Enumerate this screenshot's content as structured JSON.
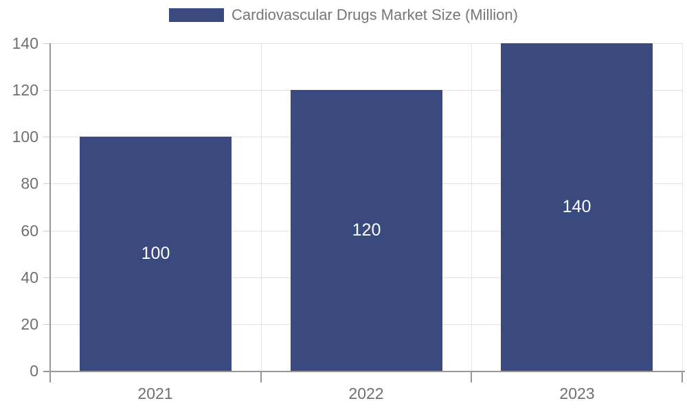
{
  "legend": {
    "label": "Cardiovascular Drugs Market Size (Million)"
  },
  "chart_data": {
    "type": "bar",
    "title": "Cardiovascular Drugs Market Size (Million)",
    "series_name": "Cardiovascular Drugs Market Size (Million)",
    "categories": [
      "2021",
      "2022",
      "2023"
    ],
    "values": [
      100,
      120,
      140
    ],
    "bar_value_labels": [
      "100",
      "120",
      "140"
    ],
    "yticks": [
      0,
      20,
      40,
      60,
      80,
      100,
      120,
      140
    ],
    "ylim": [
      0,
      140
    ],
    "xlabel": "",
    "ylabel": "",
    "grid": true,
    "legend_position": "top-center",
    "value_label_position": "inside-center"
  },
  "colors": {
    "bar": "#3A4A7F",
    "grid": "#E2E2E2",
    "axis": "#979797",
    "tick": "#C9C9C9",
    "tick_label": "#6F6F6F",
    "legend_text": "#767676",
    "value_label": "#FFFFFF",
    "background": "#FFFFFF"
  }
}
